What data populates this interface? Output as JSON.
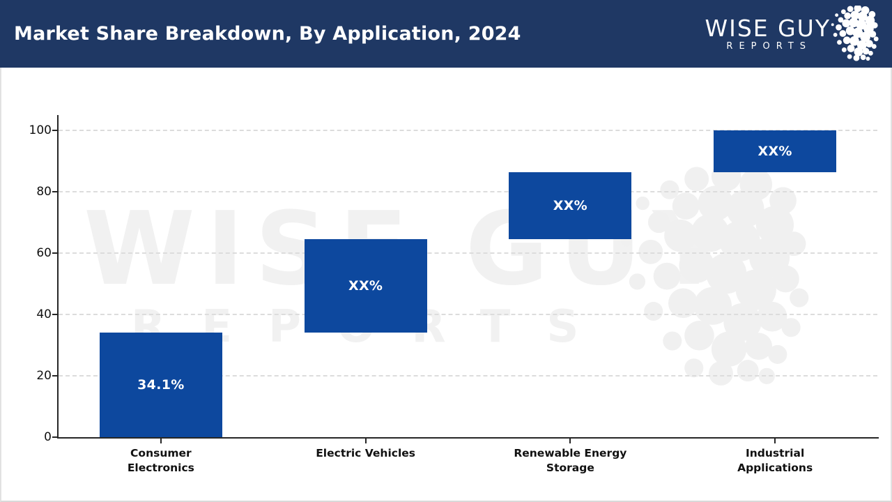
{
  "header": {
    "title": "Market Share Breakdown, By Application, 2024",
    "bg_color": "#1f3864",
    "logo": {
      "line1": "WISE GUY",
      "line2": "REPORTS"
    }
  },
  "watermark": {
    "line1": "WISE GUY",
    "line2": "REPORTS"
  },
  "chart_data": {
    "type": "bar",
    "subtype": "waterfall",
    "title": "Market Share Breakdown, By Application, 2024",
    "xlabel": "",
    "ylabel": "",
    "ylim": [
      0,
      105
    ],
    "y_ticks": [
      0,
      20,
      40,
      60,
      80,
      100
    ],
    "grid": "dashed-horizontal",
    "legend": "none",
    "bar_color": "#0d489e",
    "categories": [
      "Consumer Electronics",
      "Electric Vehicles",
      "Renewable Energy Storage",
      "Industrial Applications"
    ],
    "segments": [
      {
        "label": "Consumer Electronics",
        "label_lines": [
          "Consumer",
          "Electronics"
        ],
        "start": 0,
        "end": 34.1,
        "value_label": "34.1%"
      },
      {
        "label": "Electric Vehicles",
        "label_lines": [
          "Electric Vehicles"
        ],
        "start": 34.1,
        "end": 64.5,
        "value_label": "XX%"
      },
      {
        "label": "Renewable Energy Storage",
        "label_lines": [
          "Renewable Energy",
          "Storage"
        ],
        "start": 64.5,
        "end": 86.4,
        "value_label": "XX%"
      },
      {
        "label": "Industrial Applications",
        "label_lines": [
          "Industrial",
          "Applications"
        ],
        "start": 86.4,
        "end": 100,
        "value_label": "XX%"
      }
    ]
  }
}
